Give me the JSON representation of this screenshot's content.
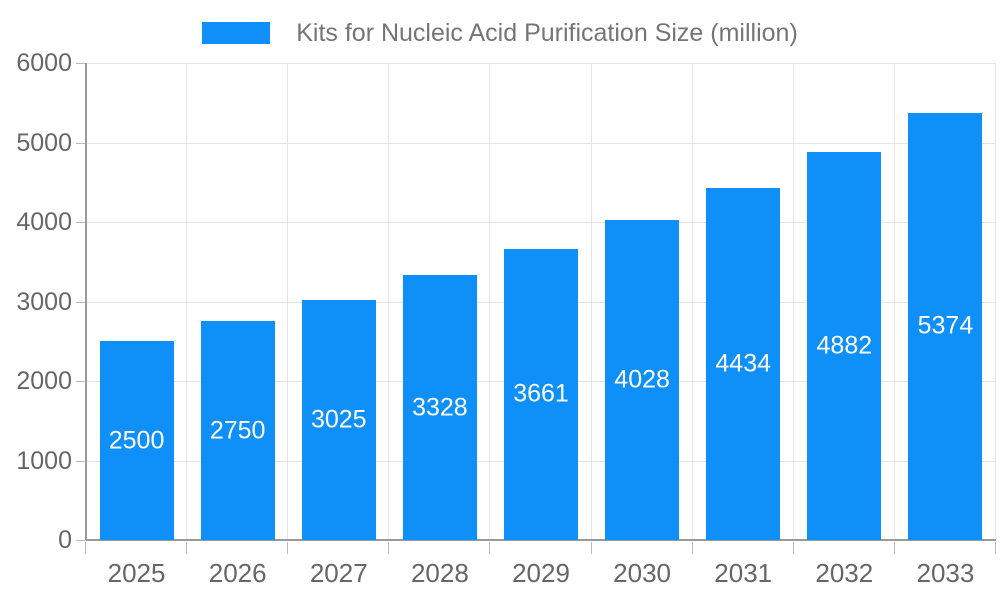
{
  "legend": {
    "label": "Kits for Nucleic Acid Purification Size (million)"
  },
  "chart_data": {
    "type": "bar",
    "title": "Kits for Nucleic Acid Purification Size (million)",
    "series_name": "Kits for Nucleic Acid Purification Size (million)",
    "categories": [
      "2025",
      "2026",
      "2027",
      "2028",
      "2029",
      "2030",
      "2031",
      "2032",
      "2033"
    ],
    "values": [
      2500,
      2750,
      3025,
      3328,
      3661,
      4028,
      4434,
      4882,
      5374
    ],
    "xlabel": "",
    "ylabel": "",
    "ylim": [
      0,
      6000
    ],
    "yticks": [
      0,
      1000,
      2000,
      3000,
      4000,
      5000,
      6000
    ],
    "grid": true,
    "legend_position": "top-center",
    "bar_labels_visible": true,
    "colors": {
      "bar": "#0E90F8",
      "bar_label_text": "#FFFFFF",
      "axis": "#999999",
      "gridline": "#E4E4E4",
      "tick_mark": "#BBBBBB",
      "tick_label": "#666666",
      "legend_text": "#757575",
      "background": "#FFFFFF"
    }
  }
}
